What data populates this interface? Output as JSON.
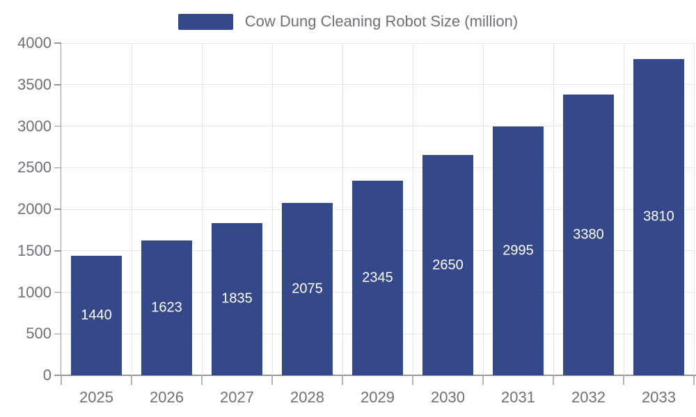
{
  "chart_data": {
    "type": "bar",
    "title": "Cow Dung Cleaning Robot Size (million)",
    "categories": [
      "2025",
      "2026",
      "2027",
      "2028",
      "2029",
      "2030",
      "2031",
      "2032",
      "2033"
    ],
    "values": [
      1440,
      1623,
      1835,
      2075,
      2345,
      2650,
      2995,
      3380,
      3810
    ],
    "xlabel": "",
    "ylabel": "",
    "ylim": [
      0,
      4000
    ],
    "ytick_step": 500,
    "grid": true,
    "legend_position": "top-center",
    "bar_color": "#35498a",
    "bar_label_color": "#ffffff",
    "axis_line_color": "#969696",
    "grid_line_color": "#e2e4ea",
    "axis_label_color": "#6e7079"
  }
}
